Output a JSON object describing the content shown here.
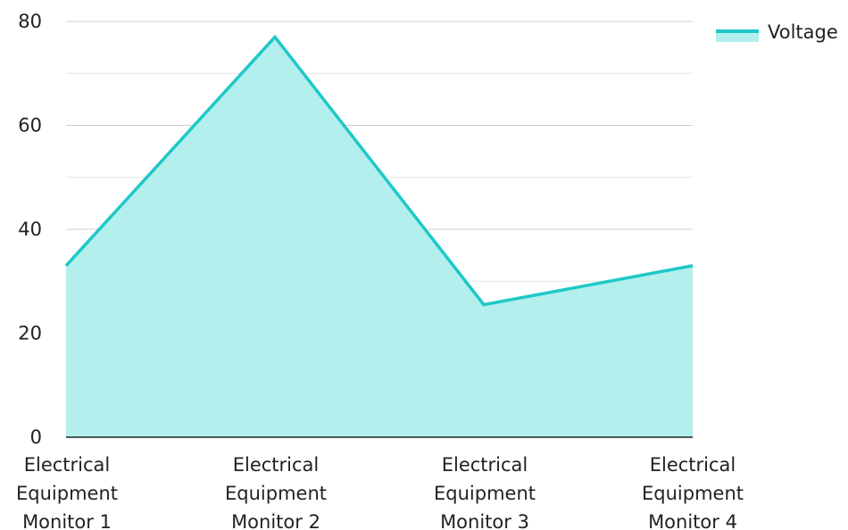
{
  "chart_data": {
    "type": "area",
    "categories": [
      [
        "Electrical",
        "Equipment",
        "Monitor 1"
      ],
      [
        "Electrical",
        "Equipment",
        "Monitor 2"
      ],
      [
        "Electrical",
        "Equipment",
        "Monitor 3"
      ],
      [
        "Electrical",
        "Equipment",
        "Monitor 4"
      ]
    ],
    "series": [
      {
        "name": "Voltage",
        "values": [
          33,
          77,
          25.5,
          33
        ]
      }
    ],
    "ylim": [
      0,
      80
    ],
    "yticks": [
      "0",
      "20",
      "40",
      "60",
      "80"
    ],
    "grid": true,
    "legend_position": "top-right",
    "colors": {
      "line": "#1ec8c8",
      "fill": "#b2efed",
      "grid": "#d9d9d9",
      "axis": "#222222"
    }
  }
}
